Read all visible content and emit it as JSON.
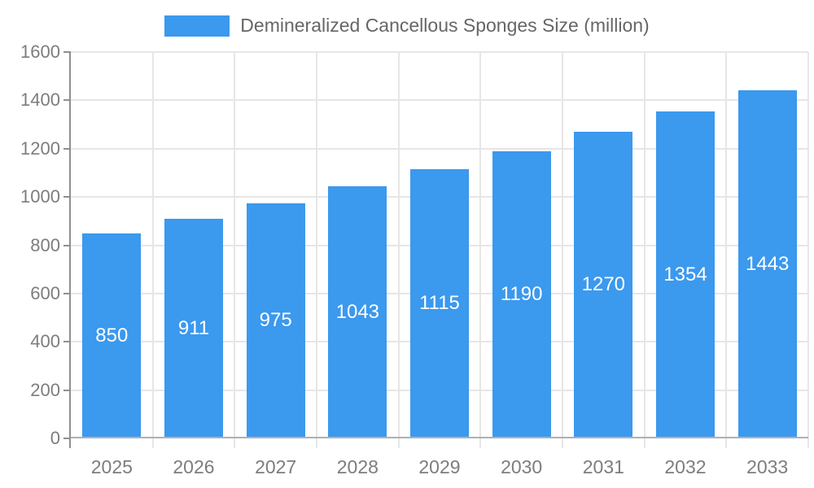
{
  "legend": {
    "label": "Demineralized Cancellous Sponges Size (million)"
  },
  "chart_data": {
    "type": "bar",
    "categories": [
      "2025",
      "2026",
      "2027",
      "2028",
      "2029",
      "2030",
      "2031",
      "2032",
      "2033"
    ],
    "values": [
      850,
      911,
      975,
      1043,
      1115,
      1190,
      1270,
      1354,
      1443
    ],
    "series": [
      {
        "name": "Demineralized Cancellous Sponges Size (million)",
        "values": [
          850,
          911,
          975,
          1043,
          1115,
          1190,
          1270,
          1354,
          1443
        ]
      }
    ],
    "title": "",
    "xlabel": "",
    "ylabel": "",
    "ylim": [
      0,
      1600
    ],
    "yticks": [
      0,
      200,
      400,
      600,
      800,
      1000,
      1200,
      1400,
      1600
    ],
    "grid": true,
    "legend_position": "top-center",
    "value_labels": "inside-center-white"
  },
  "colors": {
    "bar": "#3b99ee",
    "grid": "#e6e6e6",
    "y_axis_line": "#8f8f8f",
    "x_axis_line": "#b0b0b0",
    "tick_label": "#7d7d7d",
    "legend_text": "#666666",
    "value_label": "#ffffff",
    "background": "#ffffff"
  }
}
